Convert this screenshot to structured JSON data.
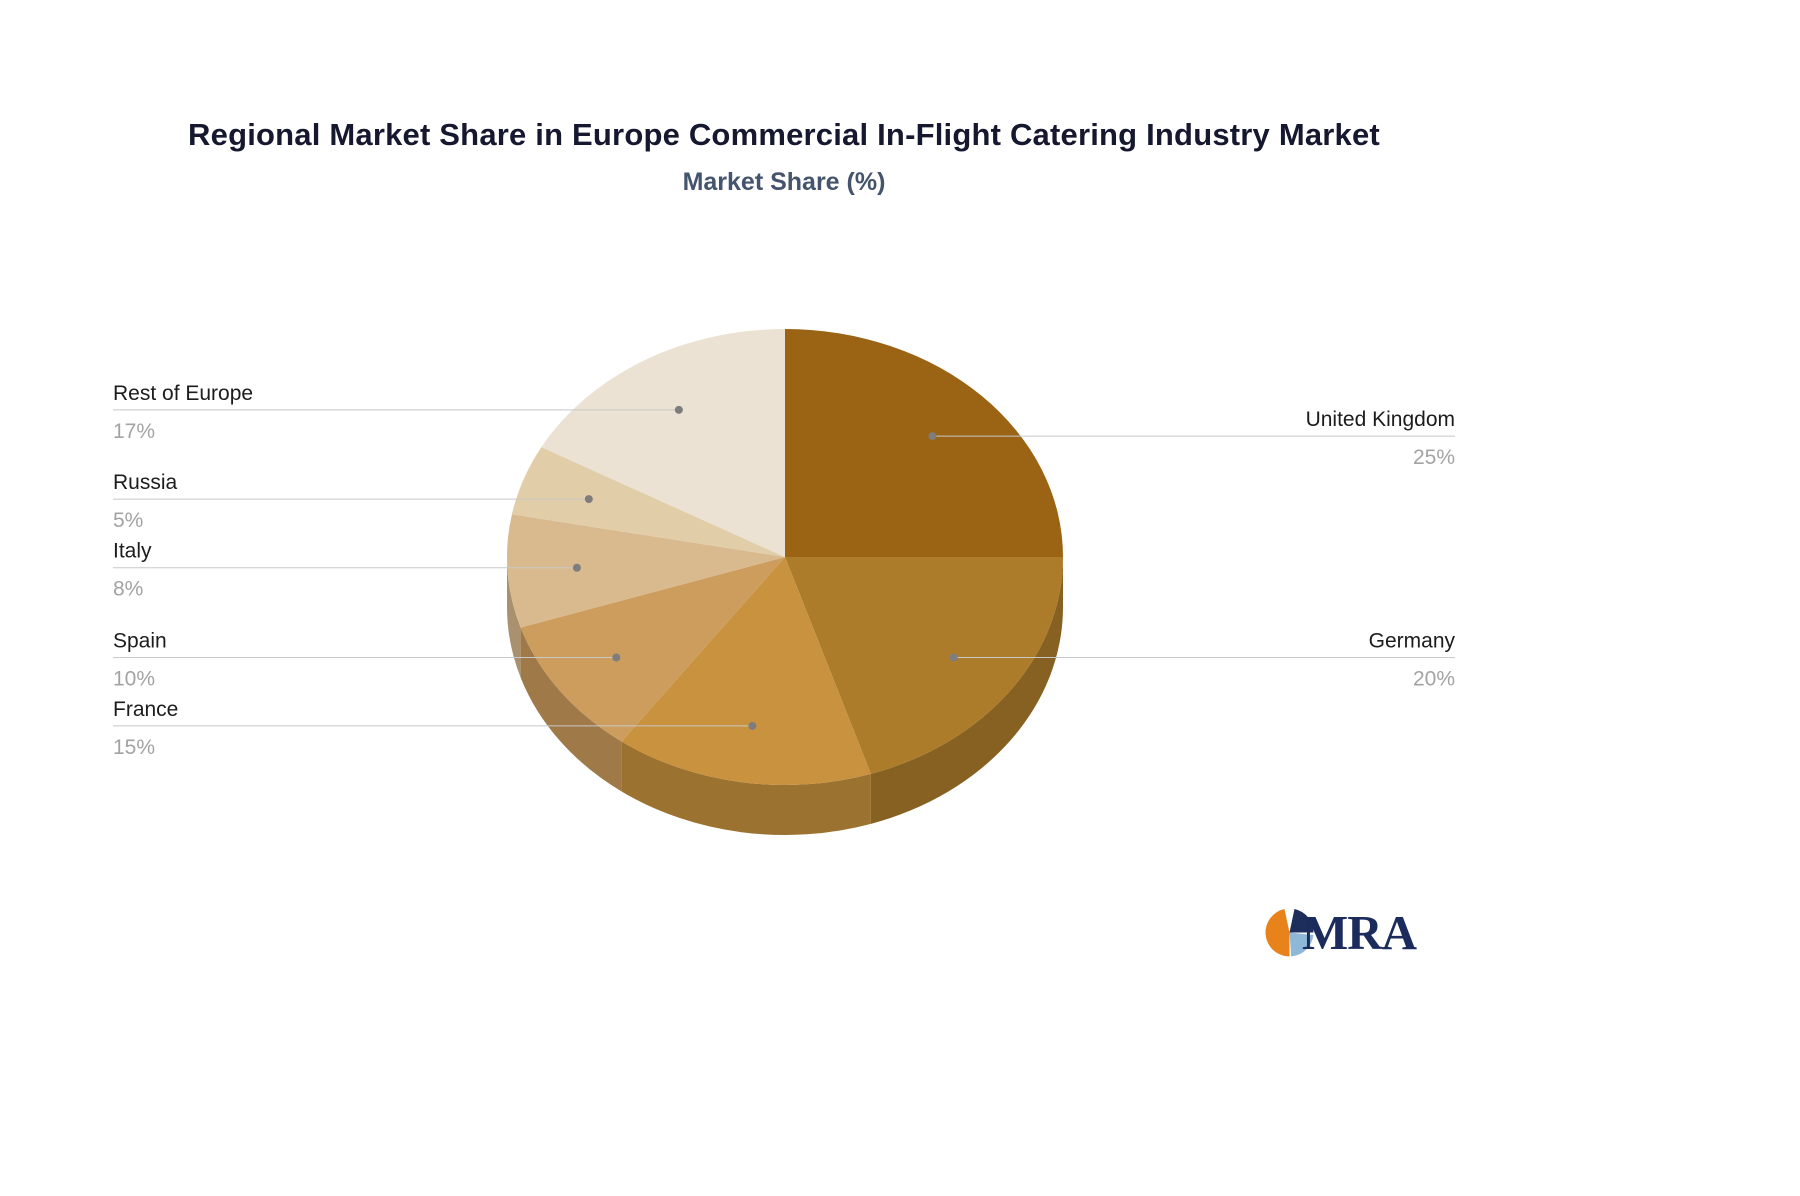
{
  "header": {
    "title": "Regional Market Share in Europe Commercial In-Flight Catering Industry Market",
    "subtitle": "Market Share (%)"
  },
  "chart_data": {
    "type": "pie",
    "title": "Regional Market Share in Europe Commercial In-Flight Catering Industry Market",
    "subtitle": "Market Share (%)",
    "unit": "%",
    "style": "3d-pie",
    "direction": "clockwise",
    "start_angle_deg": 0,
    "legend": "none",
    "label_format": "name above leader line, percent below",
    "series": [
      {
        "label": "United Kingdom",
        "value": 25,
        "color": "#9a6414"
      },
      {
        "label": "Germany",
        "value": 20,
        "color": "#ad7c2a"
      },
      {
        "label": "France",
        "value": 15,
        "color": "#c8923e"
      },
      {
        "label": "Spain",
        "value": 10,
        "color": "#cc9d5c"
      },
      {
        "label": "Italy",
        "value": 8,
        "color": "#d9ba8e"
      },
      {
        "label": "Russia",
        "value": 5,
        "color": "#e2cda9"
      },
      {
        "label": "Rest of Europe",
        "value": 17,
        "color": "#ebe2d3"
      }
    ],
    "leader_line_color": "#c8c8c8",
    "dot_color": "#7d7d7d",
    "name_color": "#1c1c1c",
    "percent_color": "#a3a3a3"
  },
  "logo": {
    "text": "MRA",
    "colors": {
      "orange": "#e8831c",
      "navy": "#1d2d5c",
      "light_blue": "#8fb8d8",
      "text_navy": "#1b2b5c"
    }
  }
}
